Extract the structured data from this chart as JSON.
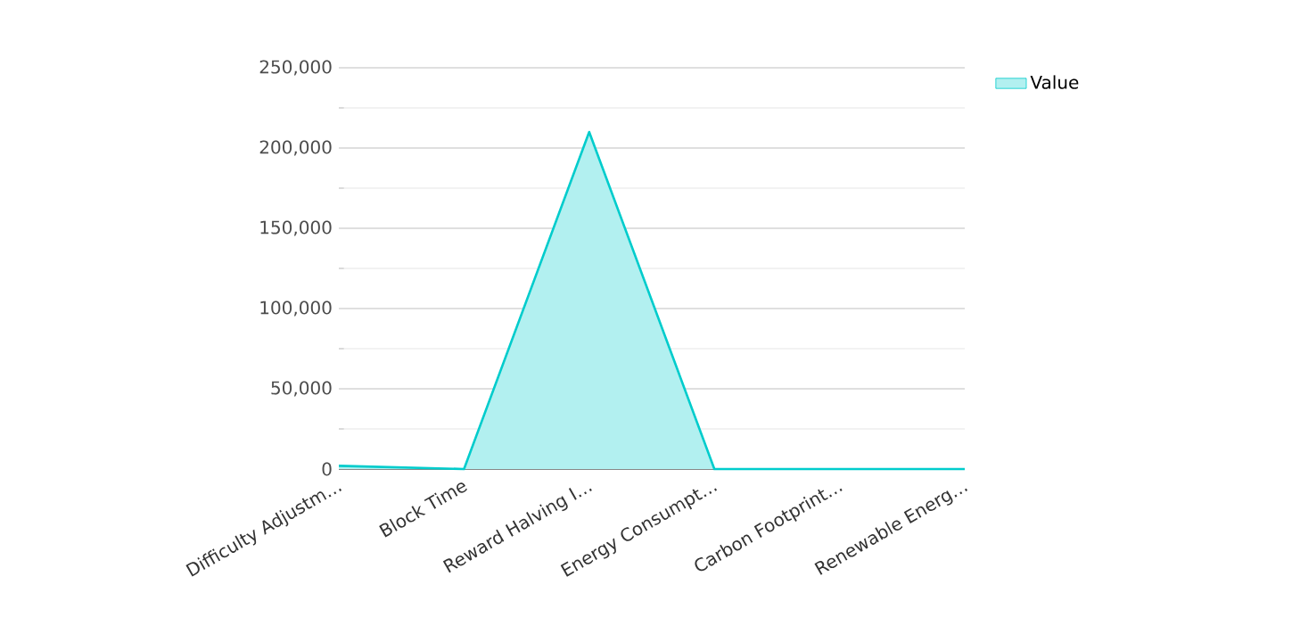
{
  "chart_data": {
    "type": "area",
    "categories": [
      "Difficulty Adjustm…",
      "Block Time",
      "Reward Halving I…",
      "Energy Consumpt…",
      "Carbon Footprint…",
      "Renewable Energ…"
    ],
    "series": [
      {
        "name": "Value",
        "color": "#00cccc",
        "values": [
          2000,
          0,
          210000,
          0,
          0,
          0
        ]
      }
    ],
    "ylim": [
      0,
      250000
    ],
    "yticks": [
      0,
      {
        "value": 50000,
        "label": "50,000"
      },
      {
        "value": 100000,
        "label": "100,000"
      },
      {
        "value": 150000,
        "label": "150,000"
      },
      {
        "value": 200000,
        "label": "200,000"
      },
      {
        "value": 250000,
        "label": "250,000"
      }
    ],
    "grid": "y",
    "legend": "top right"
  }
}
